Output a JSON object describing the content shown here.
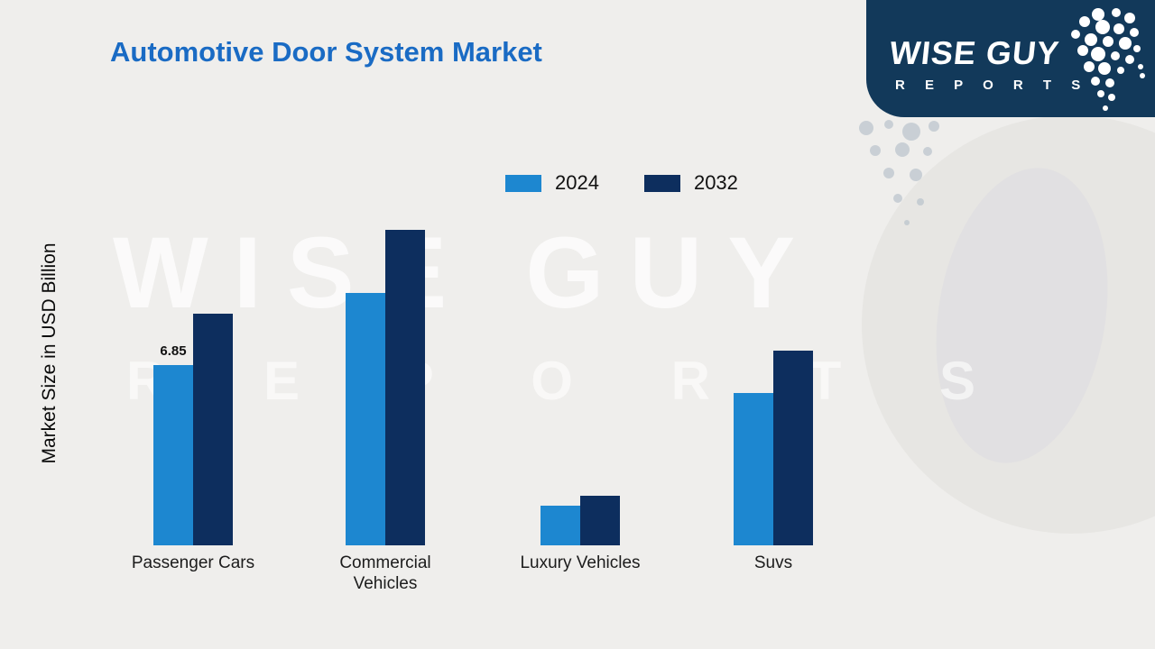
{
  "page": {
    "title": "Automotive Door System Market"
  },
  "y_axis": {
    "label": "Market Size in USD Billion"
  },
  "watermark": {
    "line1": "WISE GUY",
    "line2": "R E P O R T S"
  },
  "logo": {
    "line1": "WISE GUY",
    "line2": "R E P O R T S"
  },
  "colors": {
    "title_blue": "#1a6bc4",
    "bar_2024": "#1d87d0",
    "bar_2032": "#0d2e5e",
    "logo_background": "#12395a",
    "page_background": "#efeeec"
  },
  "chart_data": {
    "type": "bar",
    "title": "Automotive Door System Market",
    "xlabel": "",
    "ylabel": "Market Size in USD Billion",
    "categories": [
      "Passenger Cars",
      "Commercial Vehicles",
      "Luxury Vehicles",
      "Suvs"
    ],
    "series": [
      {
        "name": "2024",
        "color": "#1d87d0",
        "values": [
          6.85,
          9.6,
          1.5,
          5.8
        ]
      },
      {
        "name": "2032",
        "color": "#0d2e5e",
        "values": [
          8.8,
          12.0,
          1.9,
          7.4
        ]
      }
    ],
    "data_labels": [
      {
        "series": 0,
        "index": 0,
        "text": "6.85"
      }
    ],
    "legend_position": "top",
    "grid": false,
    "ylim": [
      0,
      13
    ]
  }
}
